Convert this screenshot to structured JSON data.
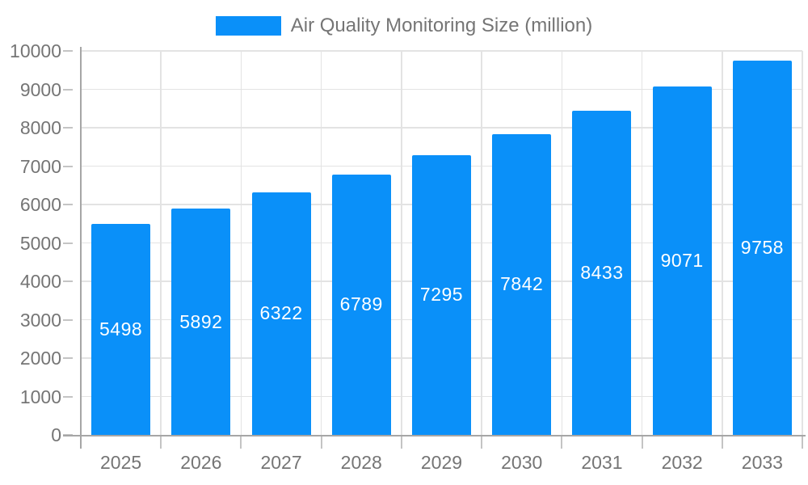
{
  "legend": {
    "label": "Air Quality Monitoring Size (million)"
  },
  "chart_data": {
    "type": "bar",
    "title": "Air Quality Monitoring Size (million)",
    "series_name": "Air Quality Monitoring Size (million)",
    "categories": [
      "2025",
      "2026",
      "2027",
      "2028",
      "2029",
      "2030",
      "2031",
      "2032",
      "2033"
    ],
    "values": [
      5498,
      5892,
      6322,
      6789,
      7295,
      7842,
      8433,
      9071,
      9758
    ],
    "bar_value_labels": [
      "5498",
      "5892",
      "6322",
      "6789",
      "7295",
      "7842",
      "8433",
      "9071",
      "9758"
    ],
    "xlabel": "",
    "ylabel": "",
    "ylim": [
      0,
      10000
    ],
    "y_tick_step": 1000,
    "y_ticks": [
      0,
      1000,
      2000,
      3000,
      4000,
      5000,
      6000,
      7000,
      8000,
      9000,
      10000
    ],
    "grid": true,
    "legend_position": "top-center",
    "bar_labels_inside": "centered",
    "colors": {
      "bar": "#0a90f9",
      "bar_label": "#ffffff",
      "axis_text": "#757575",
      "legend_text": "#757575",
      "grid": "#e3e3e3",
      "axis_line": "#a6a6a6",
      "tick": "#c4c4c4",
      "background": "#ffffff"
    }
  }
}
